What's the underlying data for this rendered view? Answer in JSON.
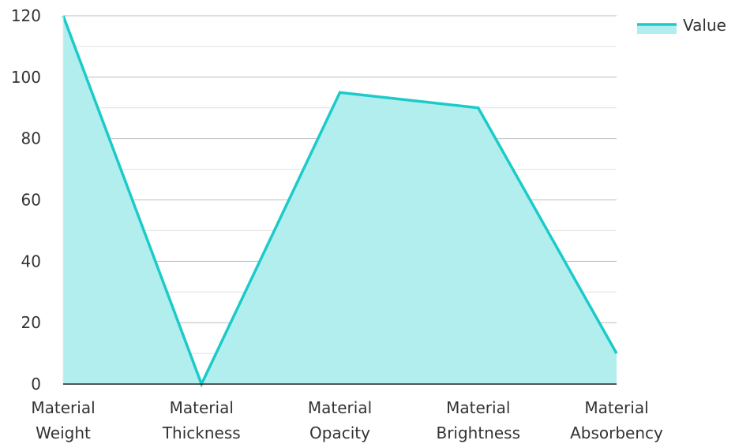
{
  "chart_data": {
    "type": "area",
    "categories": [
      [
        "Material",
        "Weight"
      ],
      [
        "Material",
        "Thickness"
      ],
      [
        "Material",
        "Opacity"
      ],
      [
        "Material",
        "Brightness"
      ],
      [
        "Material",
        "Absorbency"
      ]
    ],
    "series": [
      {
        "name": "Value",
        "values": [
          120,
          0,
          95,
          90,
          10
        ]
      }
    ],
    "ylim": [
      0,
      120
    ],
    "yticks": [
      "0",
      "20",
      "40",
      "60",
      "80",
      "100",
      "120"
    ],
    "grid": true,
    "legend_position": "top-right",
    "colors": {
      "line": "#1ccbc9",
      "fill": "#b2eeee",
      "grid": "#bdbdbd",
      "axis": "#222222"
    }
  }
}
